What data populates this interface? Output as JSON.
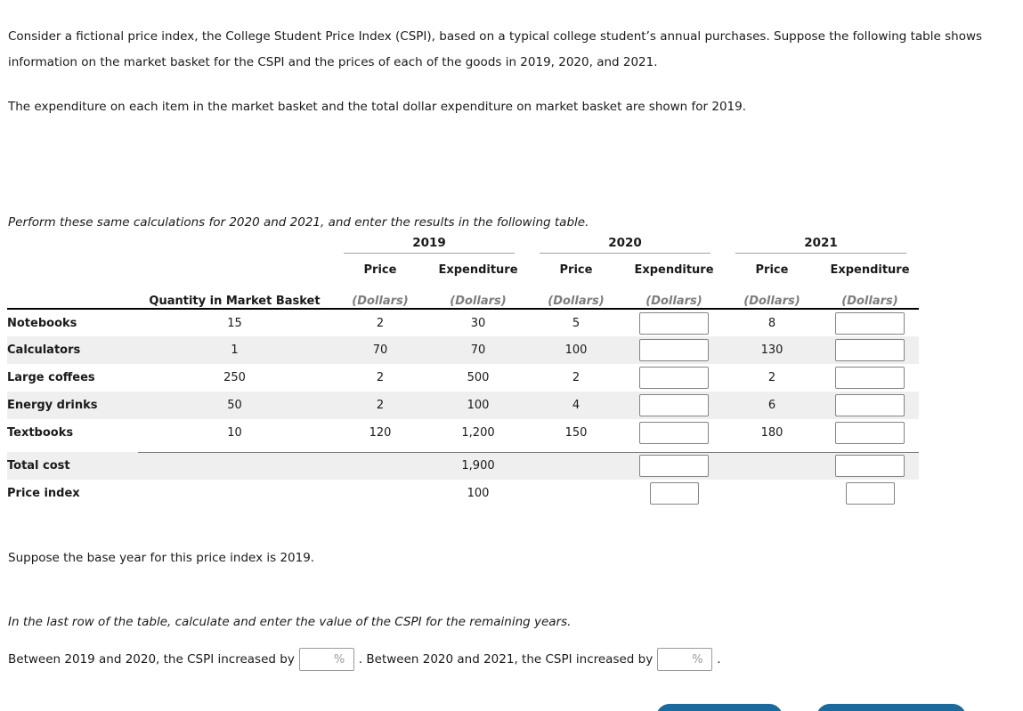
{
  "intro": {
    "paragraph1": "Consider a fictional price index, the College Student Price Index (CSPI), based on a typical college student’s annual purchases. Suppose the following table shows information on the market basket for the CSPI and the prices of each of the goods in 2019, 2020, and 2021.",
    "paragraph2": "The expenditure on each item in the market basket and the total dollar expenditure on market basket are shown for 2019.",
    "instruction1": "Perform these same calculations for 2020 and 2021, and enter the results in the following table."
  },
  "table": {
    "years": [
      "2019",
      "2020",
      "2021"
    ],
    "col_price": "Price",
    "col_expenditure": "Expenditure",
    "col_dollars": "(Dollars)",
    "quantity_header": "Quantity in Market Basket",
    "rows": [
      {
        "item": "Notebooks",
        "quantity": "15",
        "p2019": "2",
        "e2019": "30",
        "p2020": "5",
        "p2021": "8"
      },
      {
        "item": "Calculators",
        "quantity": "1",
        "p2019": "70",
        "e2019": "70",
        "p2020": "100",
        "p2021": "130"
      },
      {
        "item": "Large coffees",
        "quantity": "250",
        "p2019": "2",
        "e2019": "500",
        "p2020": "2",
        "p2021": "2"
      },
      {
        "item": "Energy drinks",
        "quantity": "50",
        "p2019": "2",
        "e2019": "100",
        "p2020": "4",
        "p2021": "6"
      },
      {
        "item": "Textbooks",
        "quantity": "10",
        "p2019": "120",
        "e2019": "1,200",
        "p2020": "150",
        "p2021": "180"
      }
    ],
    "total_row": {
      "item": "Total cost",
      "e2019": "1,900"
    },
    "index_row": {
      "item": "Price index",
      "e2019": "100"
    }
  },
  "notes": {
    "base_year": "Suppose the base year for this price index is 2019.",
    "instruction2": "In the last row of the table, calculate and enter the value of the CSPI for the remaining years."
  },
  "fill_in": {
    "part1": "Between 2019 and 2020, the CSPI increased by",
    "percent_suffix": "%",
    "part2": ". Between 2020 and 2021, the CSPI increased by",
    "part3": "."
  },
  "colors": {
    "button_blue": "#1c6a9d",
    "row_stripe": "#efefef",
    "dollars_gray": "#7d7d7d",
    "input_border": "#848484"
  }
}
